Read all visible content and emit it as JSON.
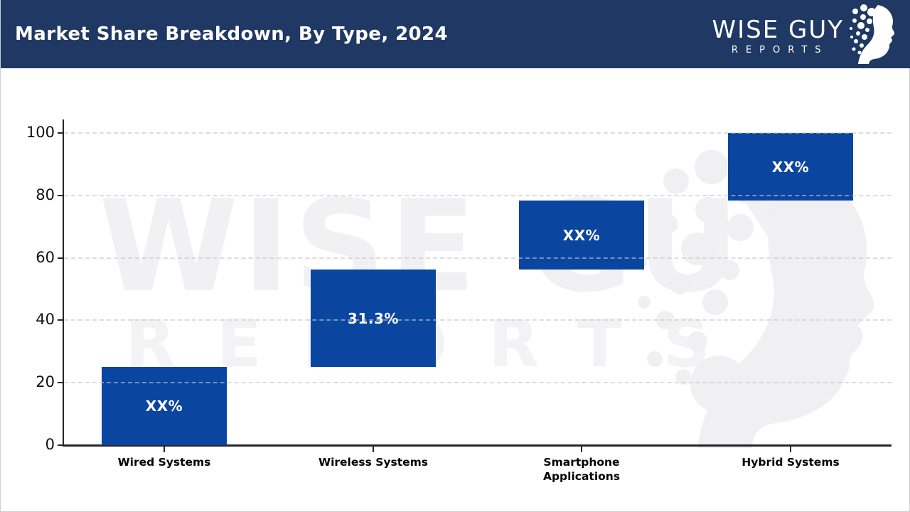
{
  "header": {
    "title": "Market Share Breakdown, By Type, 2024",
    "logo": {
      "line1": "WISE GUY",
      "line2": "REPORTS"
    }
  },
  "watermark": {
    "line1": "WISE GUY",
    "line2": "REPORTS"
  },
  "colors": {
    "header_bg": "#1f3864",
    "bar": "#0a45a0",
    "bar_label_text": "#ffffff",
    "axis": "#262626",
    "gridline": "#c6c6c6",
    "watermark_text": "#f1f1f4"
  },
  "chart_data": {
    "type": "bar",
    "subtype": "waterfall",
    "title": "Market Share Breakdown, By Type, 2024",
    "categories": [
      "Wired Systems",
      "Wireless Systems",
      "Smartphone Applications",
      "Hybrid Systems"
    ],
    "segments": [
      {
        "category": "Wired Systems",
        "start": 0,
        "end": 25,
        "label": "XX%"
      },
      {
        "category": "Wireless Systems",
        "start": 25,
        "end": 56.3,
        "label": "31.3%",
        "value": 31.3
      },
      {
        "category": "Smartphone Applications",
        "start": 56.3,
        "end": 78.3,
        "label": "XX%"
      },
      {
        "category": "Hybrid Systems",
        "start": 78.3,
        "end": 100,
        "label": "XX%"
      }
    ],
    "yticks": [
      0,
      20,
      40,
      60,
      80,
      100
    ],
    "ylim": [
      0,
      100
    ],
    "xlabel": "",
    "ylabel": "",
    "grid": "horizontal-dashed-over-bars",
    "legend": "none"
  }
}
